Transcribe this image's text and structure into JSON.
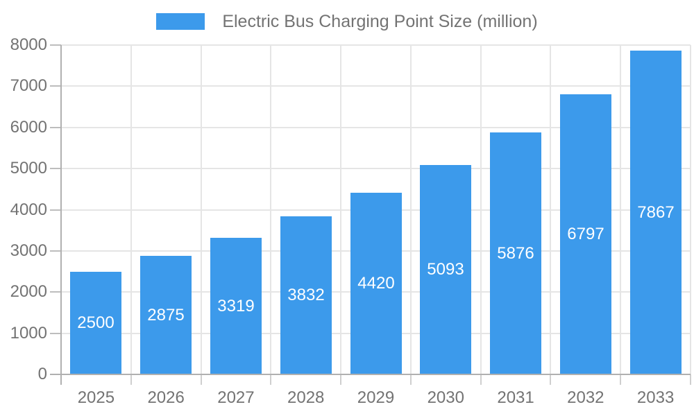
{
  "legend": {
    "label": "Electric Bus Charging Point Size (million)"
  },
  "chart_data": {
    "type": "bar",
    "title": "Electric Bus Charging Point Size (million)",
    "categories": [
      "2025",
      "2026",
      "2027",
      "2028",
      "2029",
      "2030",
      "2031",
      "2032",
      "2033"
    ],
    "values": [
      2500,
      2875,
      3319,
      3832,
      4420,
      5093,
      5876,
      6797,
      7867
    ],
    "xlabel": "",
    "ylabel": "",
    "ylim": [
      0,
      8000
    ],
    "yticks": [
      0,
      1000,
      2000,
      3000,
      4000,
      5000,
      6000,
      7000,
      8000
    ],
    "grid": true,
    "legend_position": "top",
    "bar_color": "#3C9AEB",
    "value_label_color": "#ffffff"
  },
  "colors": {
    "bar": "#3C9AEB",
    "grid": "#e5e5e5",
    "axis": "#b0b0b0",
    "y_tick": "#bdbdbd",
    "x_tick": "#cfcfcf",
    "text": "#737373",
    "value_label": "#ffffff",
    "background": "#ffffff"
  }
}
